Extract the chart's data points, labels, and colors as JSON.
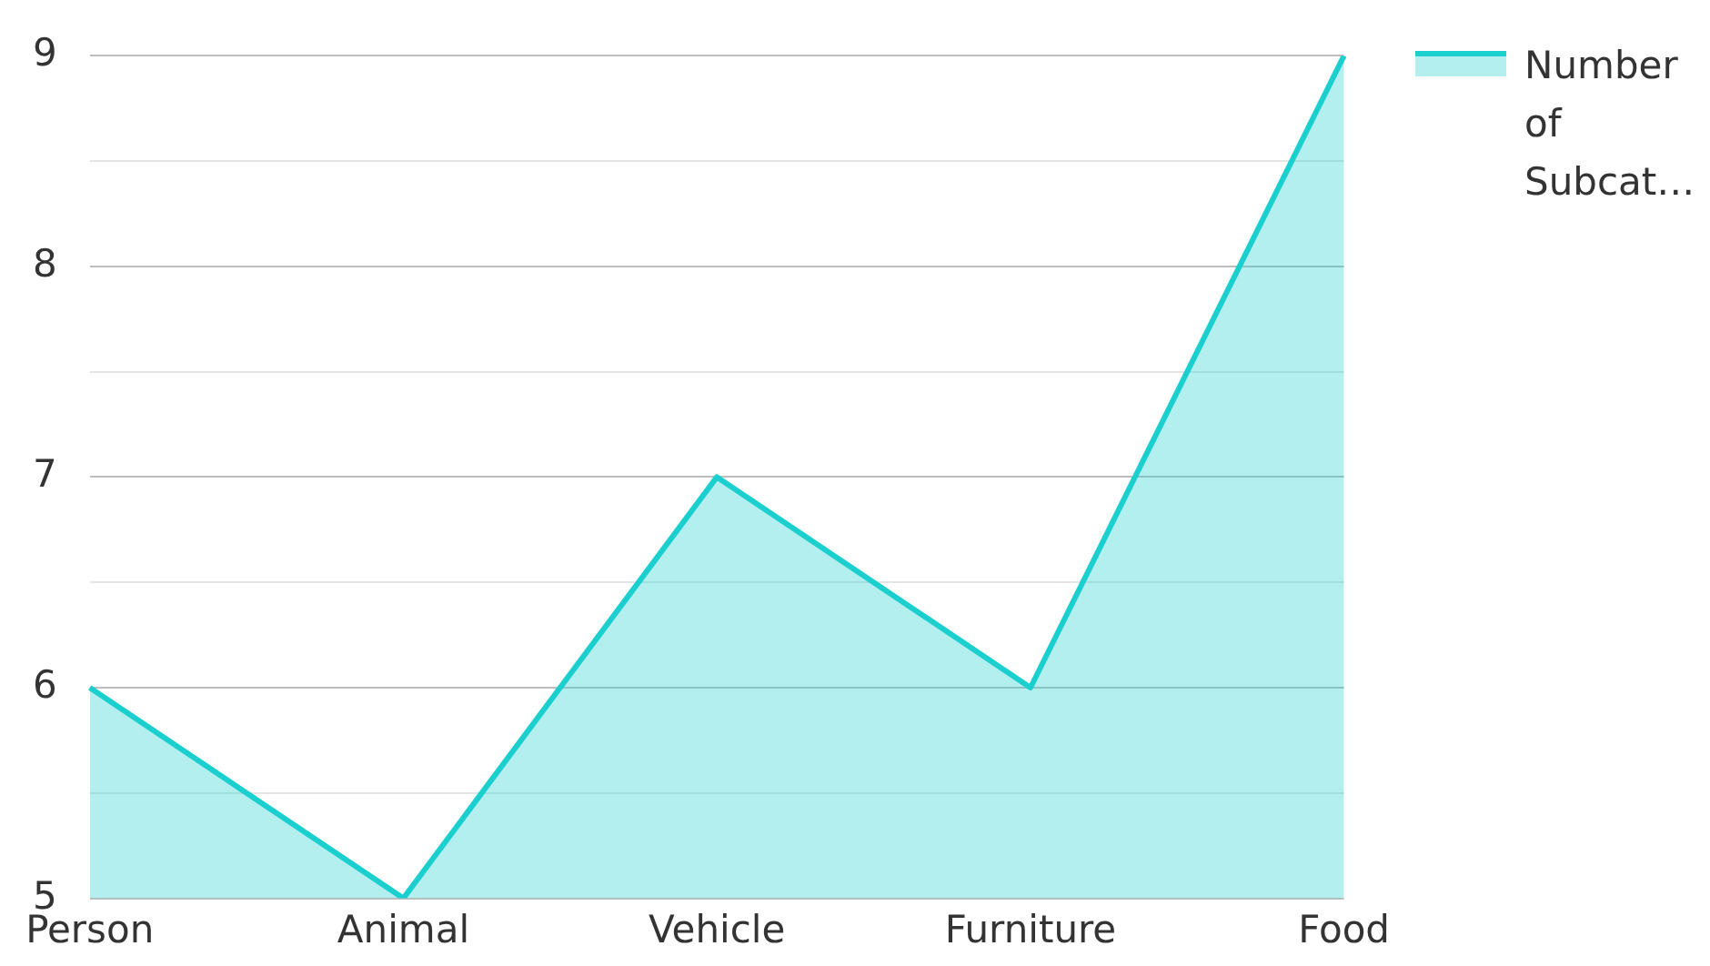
{
  "chart_data": {
    "type": "area",
    "categories": [
      "Person",
      "Animal",
      "Vehicle",
      "Furniture",
      "Food"
    ],
    "series": [
      {
        "name": "Number of Subcat…",
        "color": "#1ccfcf",
        "values": [
          6,
          5,
          7,
          6,
          9
        ]
      }
    ],
    "ylim": [
      5,
      9
    ],
    "yticks": [
      5,
      {
        "value": 5.5,
        "label": null
      },
      6,
      {
        "value": 6.5,
        "label": null
      },
      7,
      {
        "value": 7.5,
        "label": null
      },
      8,
      {
        "value": 8.5,
        "label": null
      },
      9
    ],
    "grid": "y",
    "legend": "top right",
    "marker": "none",
    "line_style": "solid"
  }
}
